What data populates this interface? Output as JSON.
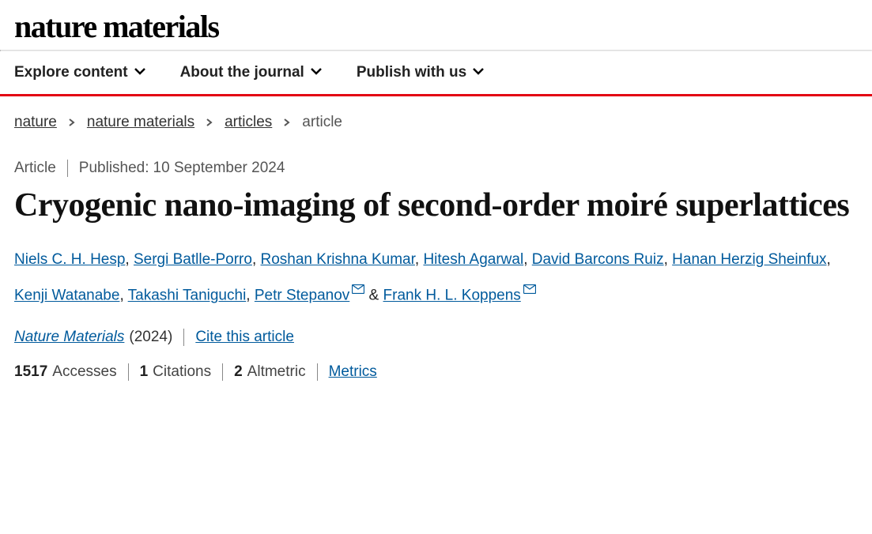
{
  "logo": "nature materials",
  "nav": [
    {
      "label": "Explore content"
    },
    {
      "label": "About the journal"
    },
    {
      "label": "Publish with us"
    }
  ],
  "breadcrumb": {
    "links": [
      "nature",
      "nature materials",
      "articles"
    ],
    "current": "article"
  },
  "meta": {
    "type": "Article",
    "published_prefix": "Published:",
    "published_date": "10 September 2024"
  },
  "title": "Cryogenic nano-imaging of second-order moiré superlattices",
  "authors": [
    {
      "name": "Niels C. H. Hesp"
    },
    {
      "name": "Sergi Batlle-Porro"
    },
    {
      "name": "Roshan Krishna Kumar"
    },
    {
      "name": "Hitesh Agarwal"
    },
    {
      "name": "David Barcons Ruiz"
    },
    {
      "name": "Hanan Herzig Sheinfux"
    },
    {
      "name": "Kenji Watanabe"
    },
    {
      "name": "Takashi Taniguchi"
    },
    {
      "name": "Petr Stepanov",
      "corresponding": true
    },
    {
      "name": "Frank H. L. Koppens",
      "corresponding": true
    }
  ],
  "authors_amp": "&",
  "journal": {
    "name": "Nature Materials",
    "year": "(2024)",
    "cite_label": "Cite this article"
  },
  "metrics": {
    "accesses": {
      "value": "1517",
      "label": "Accesses"
    },
    "citations": {
      "value": "1",
      "label": "Citations"
    },
    "altmetric": {
      "value": "2",
      "label": "Altmetric"
    },
    "metrics_link": "Metrics"
  },
  "colors": {
    "accent": "#e30613",
    "link": "#005a9c",
    "text": "#222"
  }
}
